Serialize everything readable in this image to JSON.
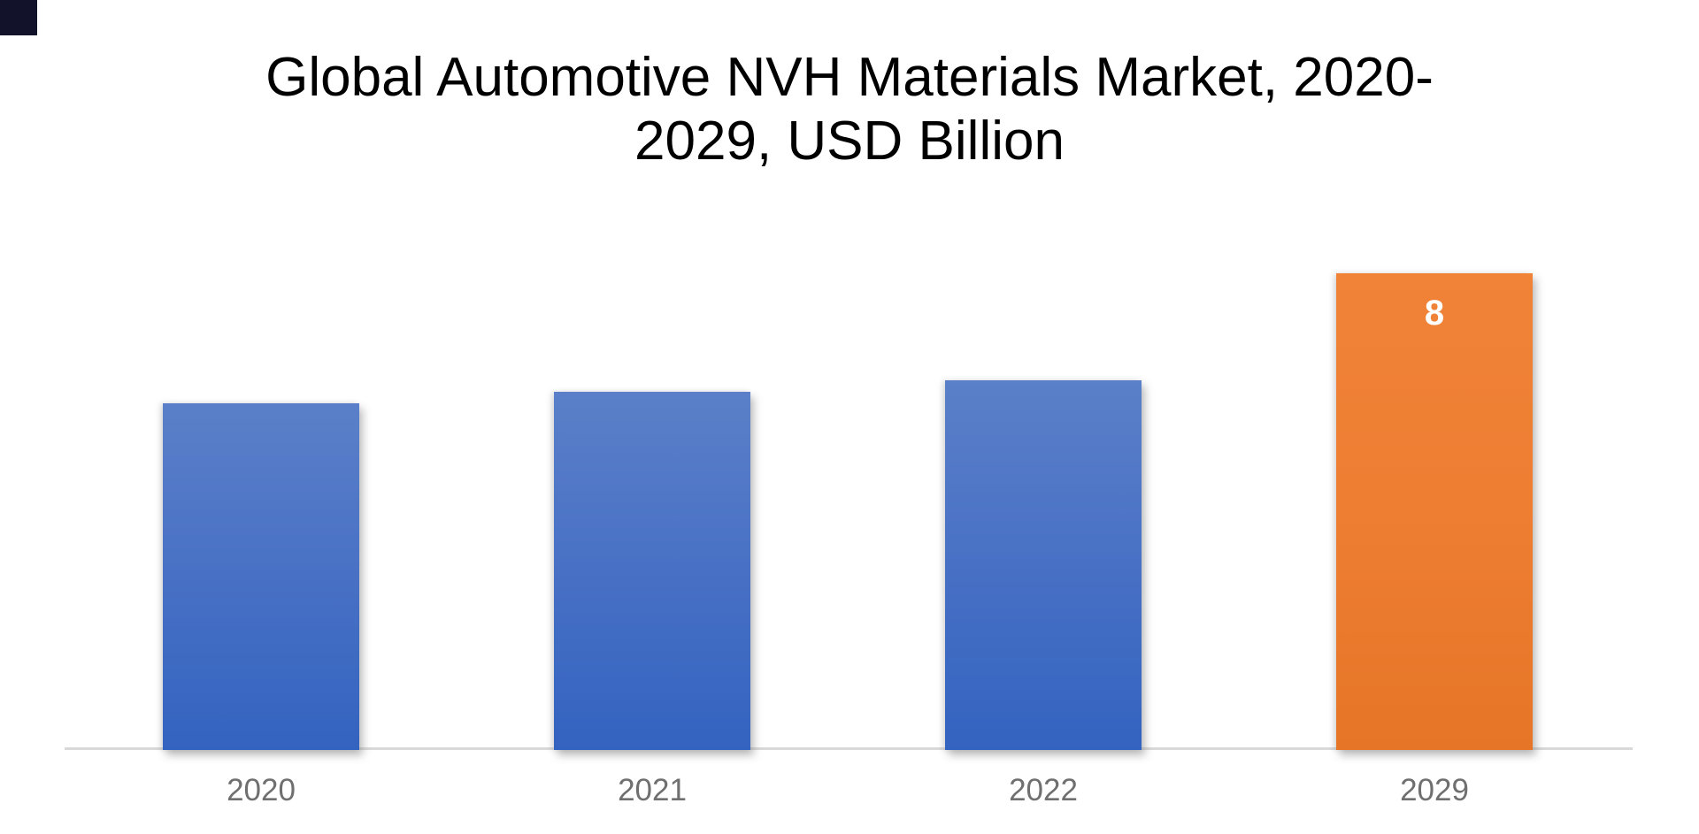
{
  "title": {
    "line1": "Global Automotive NVH Materials Market, 2020-",
    "line2": "2029, USD Billion"
  },
  "chart_data": {
    "type": "bar",
    "title": "Global Automotive NVH Materials Market, 2020-2029, USD Billion",
    "categories": [
      "2020",
      "2021",
      "2022",
      "2029"
    ],
    "values": [
      5.8,
      6.0,
      6.2,
      8
    ],
    "xlabel": "",
    "ylabel": "",
    "ylim": [
      0,
      8.9
    ],
    "grid": false,
    "legend": false,
    "y_axis_visible": false,
    "data_labels": {
      "2029": "8"
    },
    "highlight_category": "2029",
    "bar_color_default": "#4472C4",
    "bar_color_highlight": "#ED7D31",
    "axis_line_color": "#d9d9d9",
    "tick_label_color": "#6f6f6f",
    "data_label_color": "#ffffff"
  },
  "colors": {
    "background": "#ffffff",
    "title_text": "#000000",
    "corner_mark": "#12122b"
  }
}
